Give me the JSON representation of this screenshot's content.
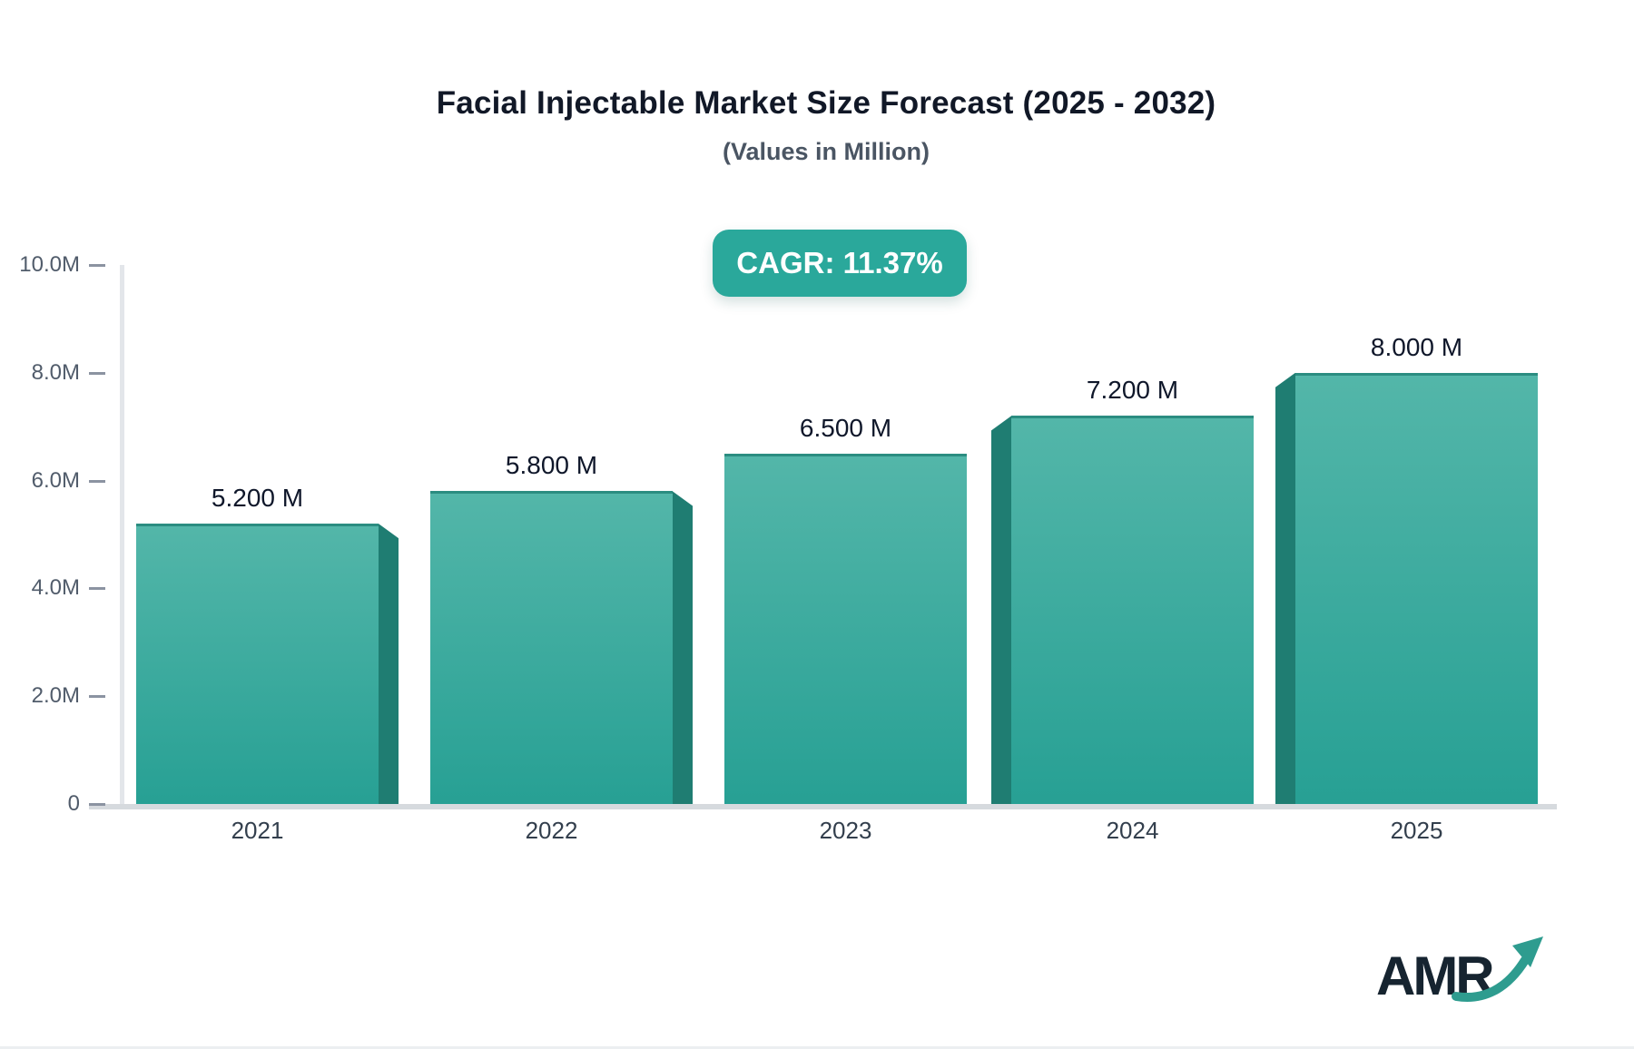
{
  "page": {
    "title": "Facial Injectable Market Size Forecast (2025 - 2032)",
    "subtitle": "(Values in Million)",
    "cagr_badge": "CAGR: 11.37%",
    "logo_text": "AMR"
  },
  "chart_data": {
    "type": "bar",
    "title": "Facial Injectable Market Size Forecast (2025 - 2032)",
    "subtitle": "(Values in Million)",
    "cagr": "11.37%",
    "unit": "Million",
    "categories": [
      "2021",
      "2022",
      "2023",
      "2024",
      "2025"
    ],
    "values": [
      5.2,
      5.8,
      6.5,
      7.2,
      8.0
    ],
    "value_labels": [
      "5.200 M",
      "5.800 M",
      "6.500 M",
      "7.200 M",
      "8.000 M"
    ],
    "xlabel": "",
    "ylabel": "",
    "ylim": [
      0,
      10
    ],
    "grid": false,
    "legend": "none",
    "y_ticks": [
      {
        "value": 0,
        "label": "0"
      },
      {
        "value": 2,
        "label": "2.0M"
      },
      {
        "value": 4,
        "label": "4.0M"
      },
      {
        "value": 6,
        "label": "6.0M"
      },
      {
        "value": 8,
        "label": "8.0M"
      },
      {
        "value": 10,
        "label": "10.0M"
      }
    ],
    "bar_3d_sides": [
      "right",
      "right",
      "none",
      "left",
      "left"
    ],
    "colors": {
      "bar_top": "#53b6a9",
      "bar_bottom": "#27a094",
      "bar_side": "#1f7d72",
      "bar_border": "#2b8d81",
      "badge_bg": "#2aa89b",
      "badge_text": "#ffffff",
      "axis_line": "#e3e6ea",
      "baseline": "#d6dade",
      "tick": "#8b93a1",
      "y_label": "#515c6b",
      "x_label": "#333f4d",
      "value_label": "#0f172a",
      "title": "#111827",
      "subtitle": "#4a5563",
      "logo_text": "#162430",
      "logo_arrow": "#2e9c8f"
    }
  }
}
